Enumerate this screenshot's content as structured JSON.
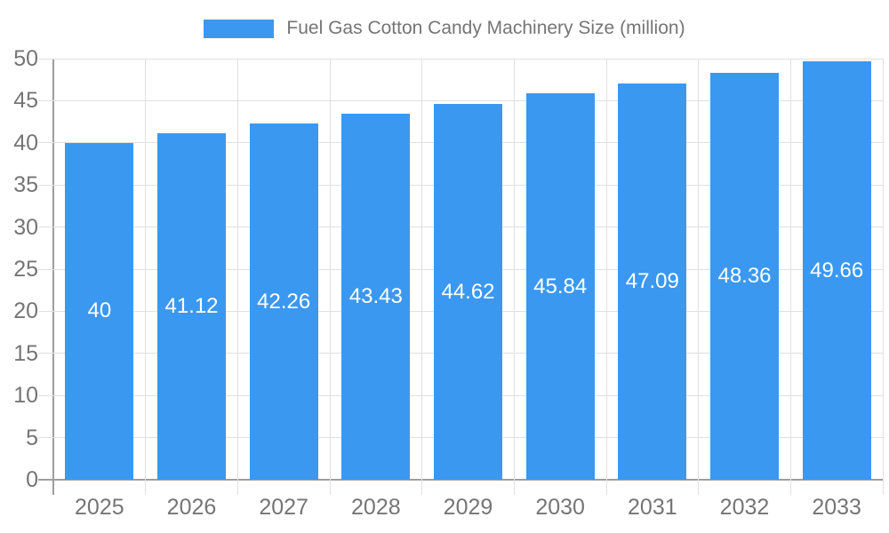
{
  "legend": {
    "label": "Fuel Gas Cotton Candy Machinery Size (million)"
  },
  "chart_data": {
    "type": "bar",
    "title": "Fuel Gas Cotton Candy Machinery Size (million)",
    "categories": [
      "2025",
      "2026",
      "2027",
      "2028",
      "2029",
      "2030",
      "2031",
      "2032",
      "2033"
    ],
    "values": [
      40,
      41.12,
      42.26,
      43.43,
      44.62,
      45.84,
      47.09,
      48.36,
      49.66
    ],
    "value_labels": [
      "40",
      "41.12",
      "42.26",
      "43.43",
      "44.62",
      "45.84",
      "47.09",
      "48.36",
      "49.66"
    ],
    "xlabel": "",
    "ylabel": "",
    "ylim": [
      0,
      50
    ],
    "ytick_step": 5,
    "ytick_labels": [
      "0",
      "5",
      "10",
      "15",
      "20",
      "25",
      "30",
      "35",
      "40",
      "45",
      "50"
    ],
    "grid": true,
    "legend_position": "top-center",
    "bar_label_position": "inside-middle",
    "colors": {
      "bar": "#3b98f1",
      "grid": "#e0e0e0",
      "axis": "#9e9e9e",
      "text": "#757575",
      "bar_label": "#ffffff",
      "background": "#ffffff"
    }
  }
}
